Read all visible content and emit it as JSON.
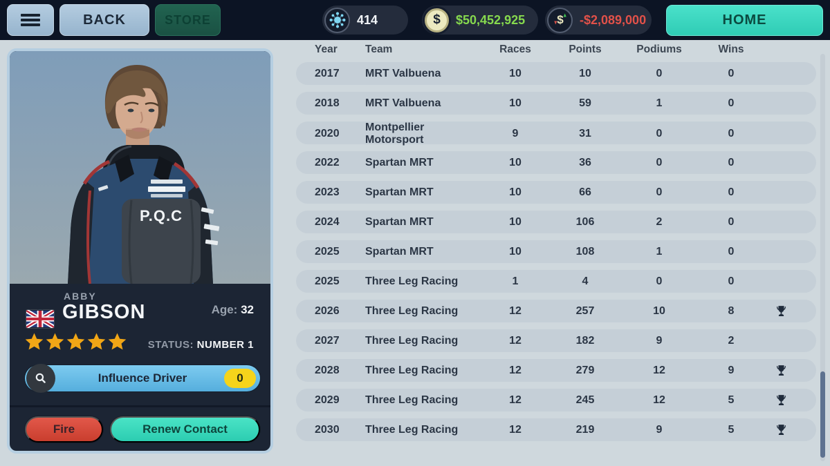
{
  "topbar": {
    "back": "BACK",
    "store": "STORE",
    "home": "HOME",
    "influence": {
      "icon": "influence-starburst-icon",
      "value": "414"
    },
    "money": {
      "icon": "dollar-coin-icon",
      "value": "$50,452,925"
    },
    "cashflow": {
      "icon": "dollar-up-down-icon",
      "value": "-$2,089,000"
    }
  },
  "driver_panel": {
    "first_name": "ABBY",
    "last_name": "GIBSON",
    "flag": "union-jack",
    "age_label": "Age:",
    "age_value": "32",
    "stars": 5,
    "status_label": "STATUS:",
    "status_value": "NUMBER 1",
    "suit_text": "P.Q.C",
    "influence_button": {
      "icon": "magnifier",
      "label": "Influence Driver",
      "badge": "0"
    },
    "fire_button": "Fire",
    "renew_button": "Renew Contact"
  },
  "history": {
    "columns": [
      "Year",
      "Team",
      "Races",
      "Points",
      "Podiums",
      "Wins"
    ],
    "rows": [
      {
        "year": "2017",
        "team": "MRT Valbuena",
        "races": "10",
        "points": "10",
        "podiums": "0",
        "wins": "0",
        "champion": false
      },
      {
        "year": "2018",
        "team": "MRT Valbuena",
        "races": "10",
        "points": "59",
        "podiums": "1",
        "wins": "0",
        "champion": false
      },
      {
        "year": "2020",
        "team": "Montpellier Motorsport",
        "races": "9",
        "points": "31",
        "podiums": "0",
        "wins": "0",
        "champion": false
      },
      {
        "year": "2022",
        "team": "Spartan MRT",
        "races": "10",
        "points": "36",
        "podiums": "0",
        "wins": "0",
        "champion": false
      },
      {
        "year": "2023",
        "team": "Spartan MRT",
        "races": "10",
        "points": "66",
        "podiums": "0",
        "wins": "0",
        "champion": false
      },
      {
        "year": "2024",
        "team": "Spartan MRT",
        "races": "10",
        "points": "106",
        "podiums": "2",
        "wins": "0",
        "champion": false
      },
      {
        "year": "2025",
        "team": "Spartan MRT",
        "races": "10",
        "points": "108",
        "podiums": "1",
        "wins": "0",
        "champion": false
      },
      {
        "year": "2025",
        "team": "Three Leg Racing",
        "races": "1",
        "points": "4",
        "podiums": "0",
        "wins": "0",
        "champion": false
      },
      {
        "year": "2026",
        "team": "Three Leg Racing",
        "races": "12",
        "points": "257",
        "podiums": "10",
        "wins": "8",
        "champion": true
      },
      {
        "year": "2027",
        "team": "Three Leg Racing",
        "races": "12",
        "points": "182",
        "podiums": "9",
        "wins": "2",
        "champion": false
      },
      {
        "year": "2028",
        "team": "Three Leg Racing",
        "races": "12",
        "points": "279",
        "podiums": "12",
        "wins": "9",
        "champion": true
      },
      {
        "year": "2029",
        "team": "Three Leg Racing",
        "races": "12",
        "points": "245",
        "podiums": "12",
        "wins": "5",
        "champion": true
      },
      {
        "year": "2030",
        "team": "Three Leg Racing",
        "races": "12",
        "points": "219",
        "podiums": "9",
        "wins": "5",
        "champion": true
      }
    ]
  },
  "colors": {
    "topbar_bg": "#0c1424",
    "accent_teal": "#3cd9c1",
    "accent_red": "#d9493a",
    "money_green": "#86d94e",
    "negative_red": "#e25149",
    "star_gold": "#f1a616",
    "badge_yellow": "#f6d41b",
    "influence_cyan": "#7fd6f2",
    "card_border_blue": "#b5cee1"
  }
}
